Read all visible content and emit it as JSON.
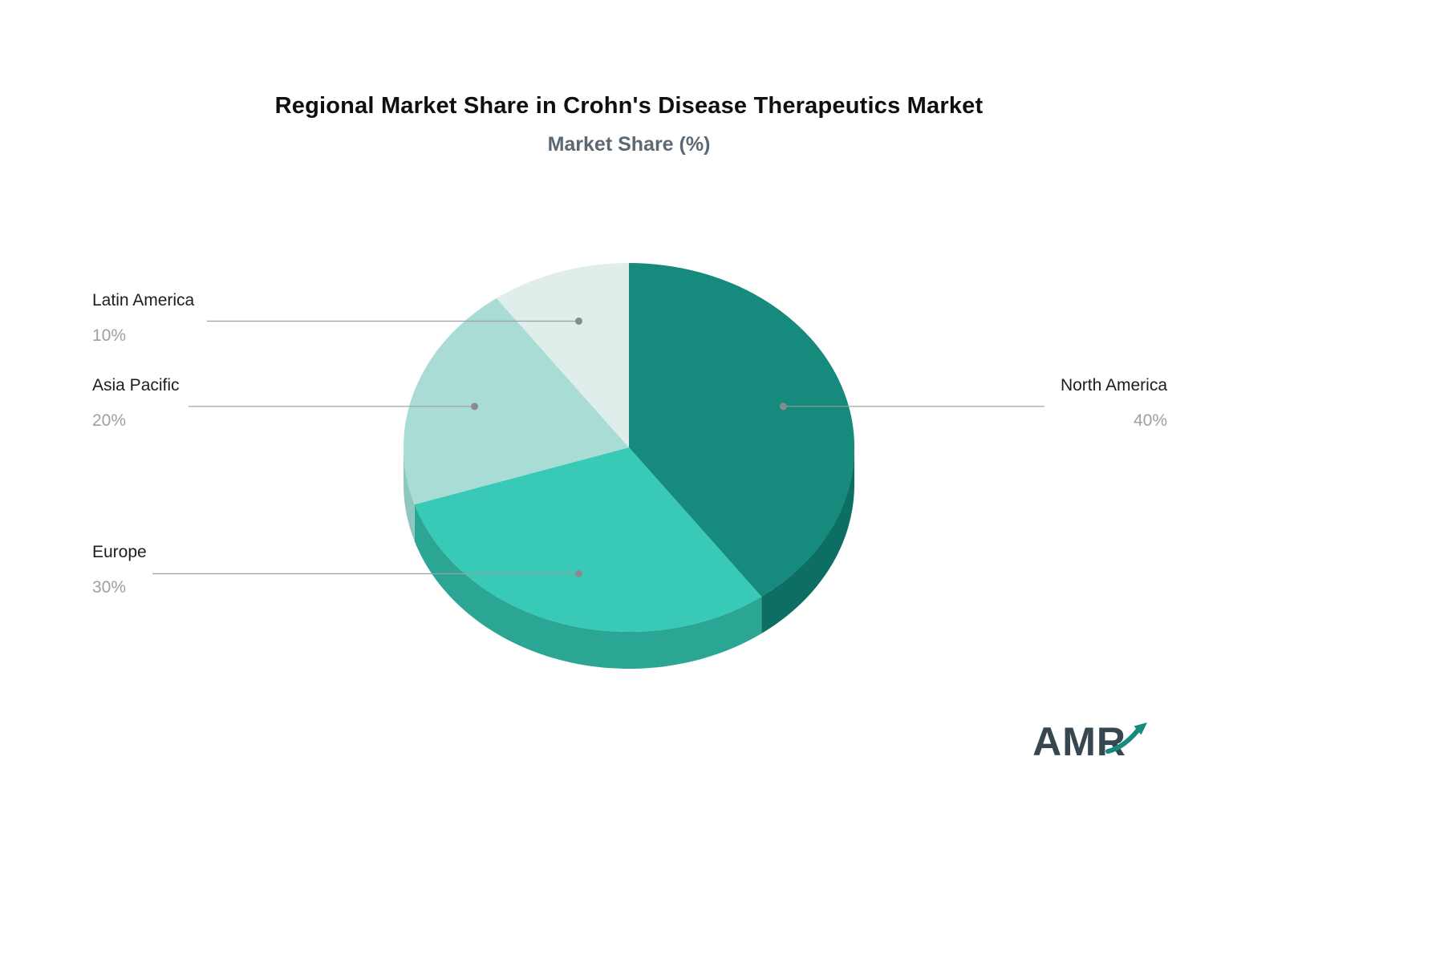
{
  "header": {
    "title": "Regional Market Share in Crohn's Disease Therapeutics Market",
    "subtitle": "Market Share (%)"
  },
  "chart_data": {
    "type": "pie",
    "style": "3d-pie",
    "title": "Regional Market Share in Crohn's Disease Therapeutics Market",
    "subtitle": "Market Share (%)",
    "unit": "%",
    "start_angle": "top",
    "direction": "clockwise",
    "legend_position": "outside-callout-labels",
    "labels": [
      "North America",
      "Europe",
      "Asia Pacific",
      "Latin America"
    ],
    "values": [
      40,
      30,
      20,
      10
    ],
    "value_labels": [
      "40%",
      "30%",
      "20%",
      "10%"
    ],
    "colors": [
      "#178a7e",
      "#38cab6",
      "#a9dcd4",
      "#dfeeea"
    ],
    "side_colors": [
      "#0d6e63",
      "#2ba695",
      "#8ec7be",
      "#c9e2dd"
    ],
    "leader_line_color": "#9e9ea2",
    "leader_dot_color": "#8b8b8f"
  },
  "logo": {
    "text": "AMR"
  }
}
